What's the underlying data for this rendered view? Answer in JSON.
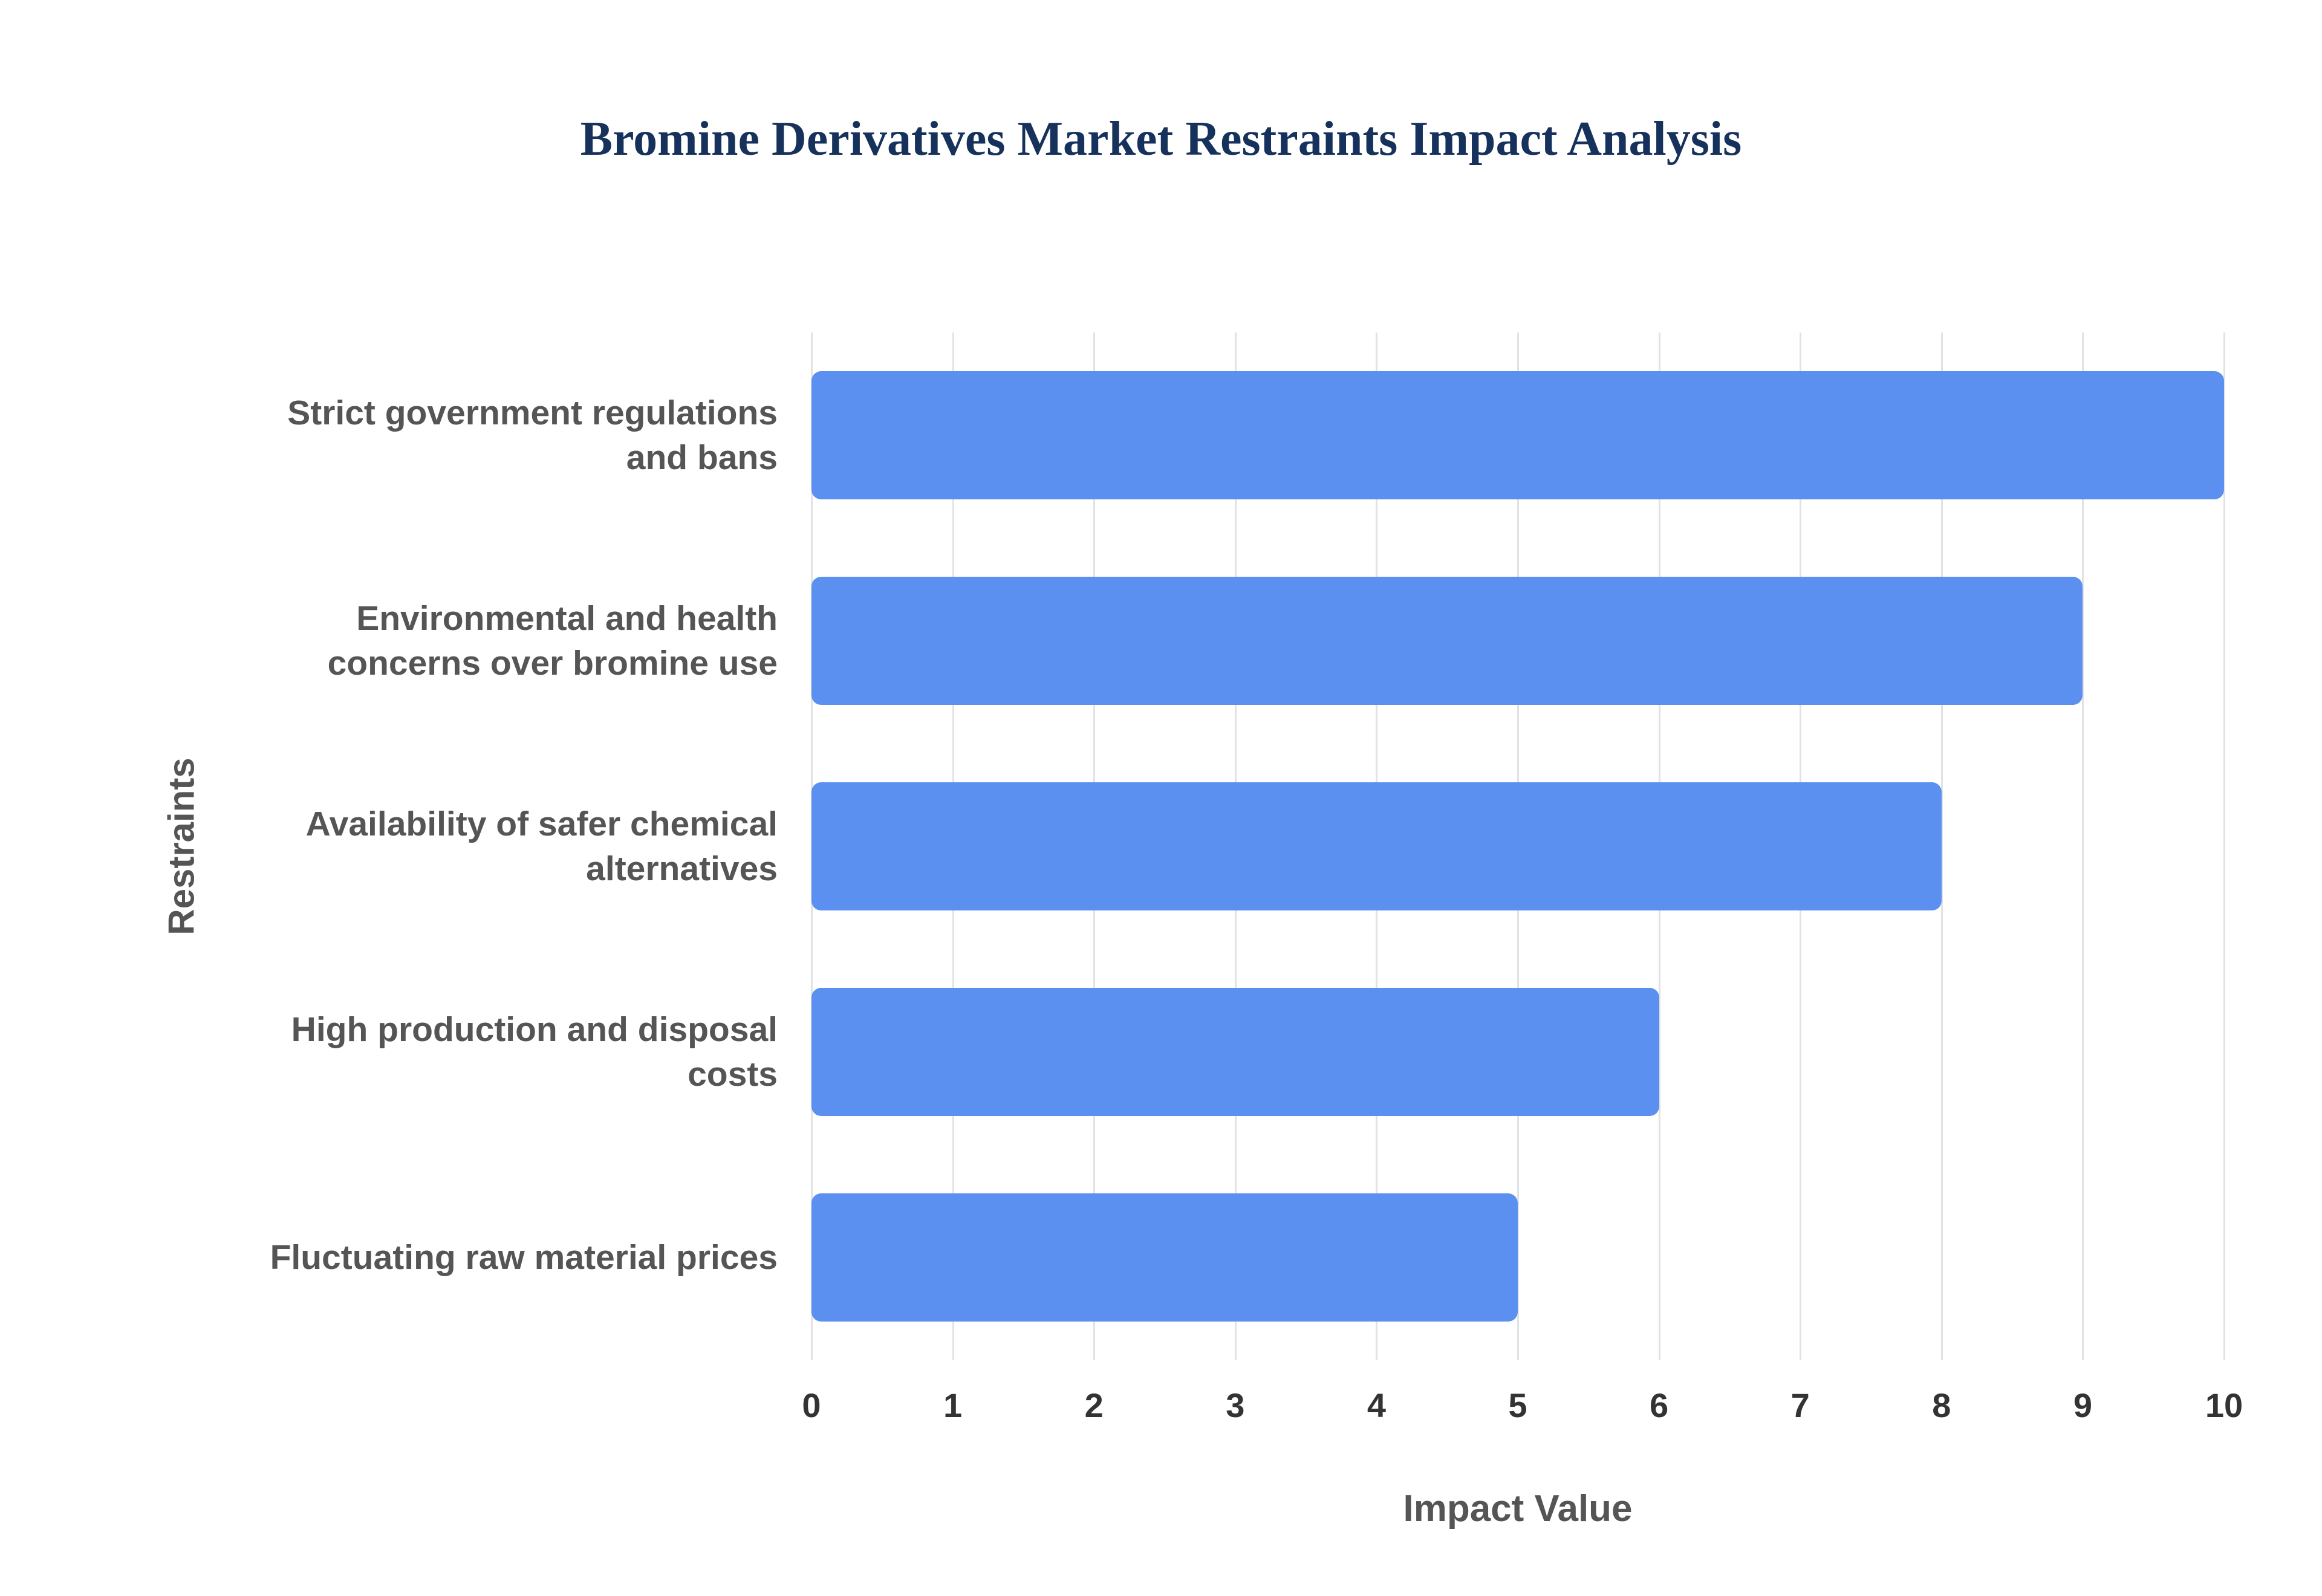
{
  "title": "Bromine Derivatives Market Restraints Impact Analysis",
  "chart_data": {
    "type": "bar",
    "orientation": "horizontal",
    "title": "Bromine Derivatives Market Restraints Impact Analysis",
    "categories": [
      "Strict government regulations and bans",
      "Environmental and health concerns over bromine use",
      "Availability of safer chemical alternatives",
      "High production and disposal costs",
      "Fluctuating raw material prices"
    ],
    "values": [
      10,
      9,
      8,
      6,
      5
    ],
    "xlabel": "Impact Value",
    "ylabel": "Restraints",
    "xlim": [
      0,
      10
    ],
    "xticks": [
      0,
      1,
      2,
      3,
      4,
      5,
      6,
      7,
      8,
      9,
      10
    ],
    "grid": "vertical",
    "legend": "none",
    "colors": {
      "bar": "#5B8FF0",
      "gridline": "#e2e2e2",
      "title": "#16325c",
      "axis_label": "#555555",
      "category_label": "#555555",
      "tick_label": "#333333",
      "background": "#ffffff"
    }
  }
}
